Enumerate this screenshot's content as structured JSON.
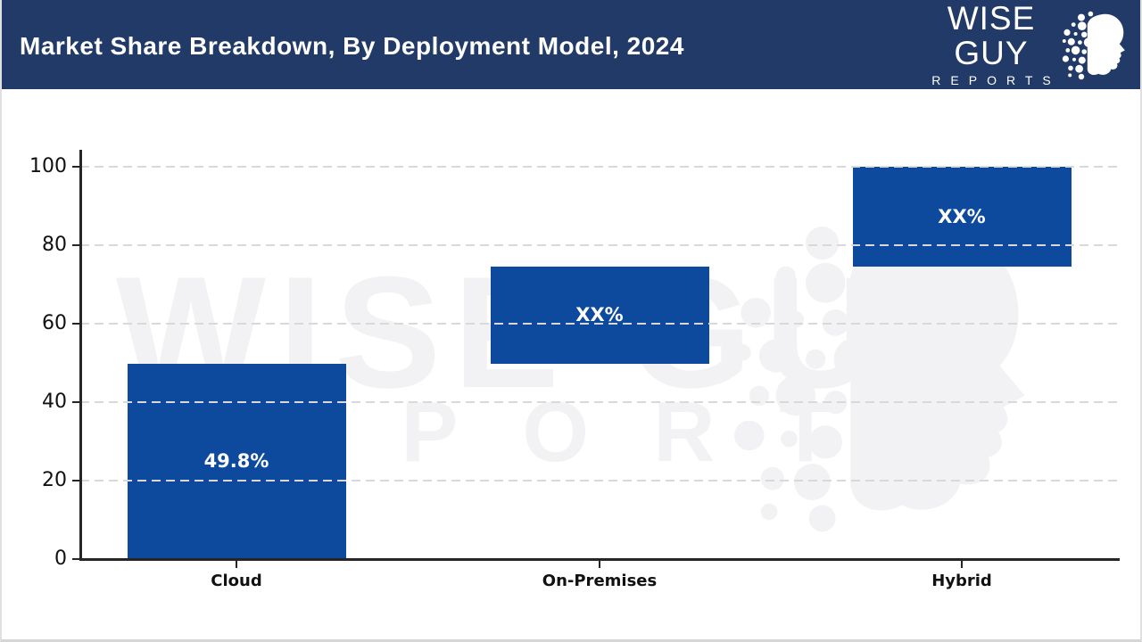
{
  "header": {
    "title": "Market Share Breakdown, By Deployment Model, 2024",
    "logo": {
      "line1": "WISE GUY",
      "line2": "REPORTS"
    }
  },
  "watermark": {
    "line1": "WISE GUY",
    "line2": "REPORTS"
  },
  "colors": {
    "header_bg": "#213a68",
    "bar": "#0d4a9e",
    "value_label": "#ffffff",
    "gridline": "#d9d9d9",
    "axis": "#262626",
    "watermark": "#f2f2f4"
  },
  "chart_data": {
    "type": "bar",
    "subtype": "floating-waterfall",
    "title": "Market Share Breakdown, By Deployment Model, 2024",
    "categories": [
      "Cloud",
      "On-Premises",
      "Hybrid"
    ],
    "segments": [
      {
        "category": "Cloud",
        "start": 0,
        "end": 49.8,
        "label": "49.8%"
      },
      {
        "category": "On-Premises",
        "start": 49.8,
        "end": 74.6,
        "label": "XX%"
      },
      {
        "category": "Hybrid",
        "start": 74.6,
        "end": 100,
        "label": "XX%"
      }
    ],
    "ylim": [
      0,
      100
    ],
    "yticks": [
      0,
      20,
      40,
      60,
      80,
      100
    ],
    "ytick_labels": [
      "0",
      "20",
      "40",
      "60",
      "80",
      "100"
    ],
    "grid": "horizontal-dashed",
    "legend": "none"
  }
}
